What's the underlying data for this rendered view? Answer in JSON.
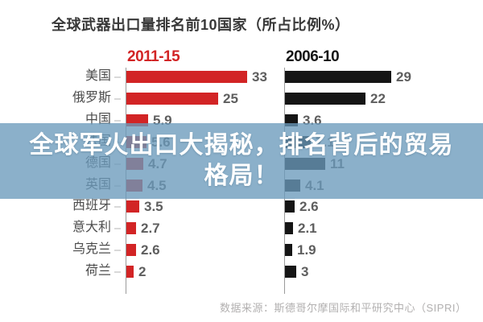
{
  "accent_colors": {
    "series_2011_15": "#d22425",
    "series_2006_10": "#151515",
    "value_text": "#5e5e5e",
    "overlay_background": "#8eb3cb",
    "overlay_text": "#ffffff"
  },
  "chart_data": {
    "type": "bar",
    "orientation": "horizontal",
    "title": "全球武器出口量排名前10国家（所占比例%）",
    "unit": "%",
    "grid": false,
    "legend_position": "column-headers-top",
    "xlim": [
      0,
      35
    ],
    "categories": [
      "美国",
      "俄罗斯",
      "中国",
      "法国",
      "德国",
      "英国",
      "西班牙",
      "意大利",
      "乌克兰",
      "荷兰"
    ],
    "series": [
      {
        "name": "2011-15",
        "color": "#d22425",
        "values": [
          33,
          25,
          5.9,
          5.6,
          4.7,
          4.5,
          3.5,
          2.7,
          2.6,
          2
        ]
      },
      {
        "name": "2006-10",
        "color": "#151515",
        "values": [
          29,
          22,
          3.6,
          7.1,
          11,
          4.1,
          2.6,
          2.1,
          1.9,
          3
        ]
      }
    ],
    "value_labels": [
      [
        "33",
        "25",
        "5.9",
        "5.6",
        "4.7",
        "4.5",
        "3.5",
        "2.7",
        "2.6",
        "2"
      ],
      [
        "29",
        "22",
        "3.6",
        "7.1",
        "11",
        "4.1",
        "2.6",
        "2.1",
        "1.9",
        "3"
      ]
    ]
  },
  "overlay": {
    "text_line1": "全球军火出口大揭秘，排名背后的贸易",
    "text_line2": "格局！"
  },
  "footer": {
    "source_label": "数据来源：斯德哥尔摩国际和平研究中心（SIPRI）"
  }
}
